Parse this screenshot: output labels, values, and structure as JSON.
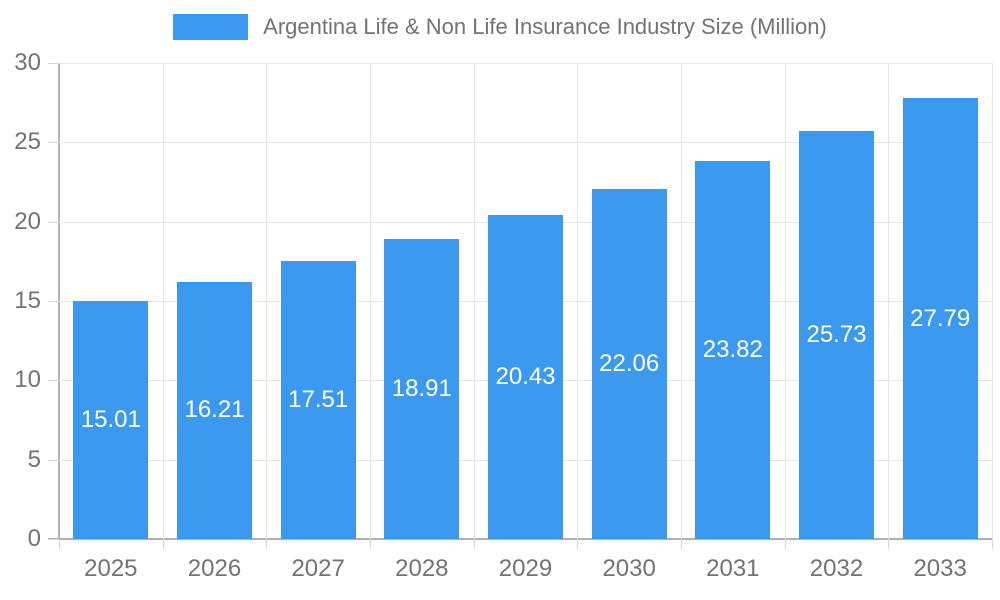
{
  "legend": {
    "label": "Argentina Life & Non Life Insurance Industry Size (Million)"
  },
  "colors": {
    "bar": "#3B99F0",
    "grid": "#E5E5E5",
    "axis": "#B0B0B0",
    "tick": "#D6D6D6",
    "label": "#737373",
    "value_text": "#FFFFFF",
    "background": "#FFFFFF"
  },
  "chart_data": {
    "type": "bar",
    "title": "Argentina Life & Non Life Insurance Industry Size (Million)",
    "categories": [
      "2025",
      "2026",
      "2027",
      "2028",
      "2029",
      "2030",
      "2031",
      "2032",
      "2033"
    ],
    "values": [
      15.01,
      16.21,
      17.51,
      18.91,
      20.43,
      22.06,
      23.82,
      25.73,
      27.79
    ],
    "xlabel": "",
    "ylabel": "",
    "ylim": [
      0,
      30
    ],
    "ytick_step": 5,
    "yticks": [
      "0",
      "5",
      "10",
      "15",
      "20",
      "25",
      "30"
    ],
    "grid": true,
    "legend_position": "top",
    "value_labels": "inside-center"
  }
}
